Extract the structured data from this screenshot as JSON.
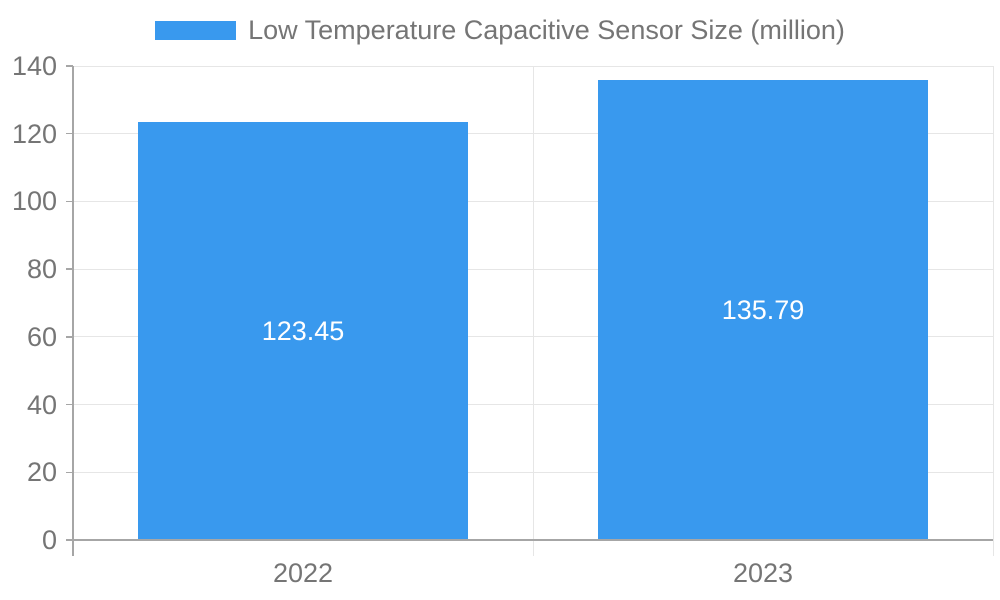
{
  "legend": {
    "label": "Low Temperature Capacitive Sensor Size (million)"
  },
  "colors": {
    "bar": "#3999EE",
    "grid": "#E6E6E6",
    "axis": "#A6A6A6",
    "tick_label": "#757575",
    "legend_text": "#757575",
    "bar_label": "#FFFFFF",
    "background": "#FFFFFF"
  },
  "chart_data": {
    "type": "bar",
    "title": "Low Temperature Capacitive Sensor Size (million)",
    "categories": [
      "2022",
      "2023"
    ],
    "series": [
      {
        "name": "Low Temperature Capacitive Sensor Size (million)",
        "color": "#3999EE",
        "values": [
          123.45,
          135.79
        ]
      }
    ],
    "bar_labels": [
      "123.45",
      "135.79"
    ],
    "xlabel": "",
    "ylabel": "",
    "ylim": [
      0,
      140
    ],
    "yticks": [
      0,
      20,
      40,
      60,
      80,
      100,
      120,
      140
    ],
    "grid": true,
    "legend_position": "top-center"
  }
}
